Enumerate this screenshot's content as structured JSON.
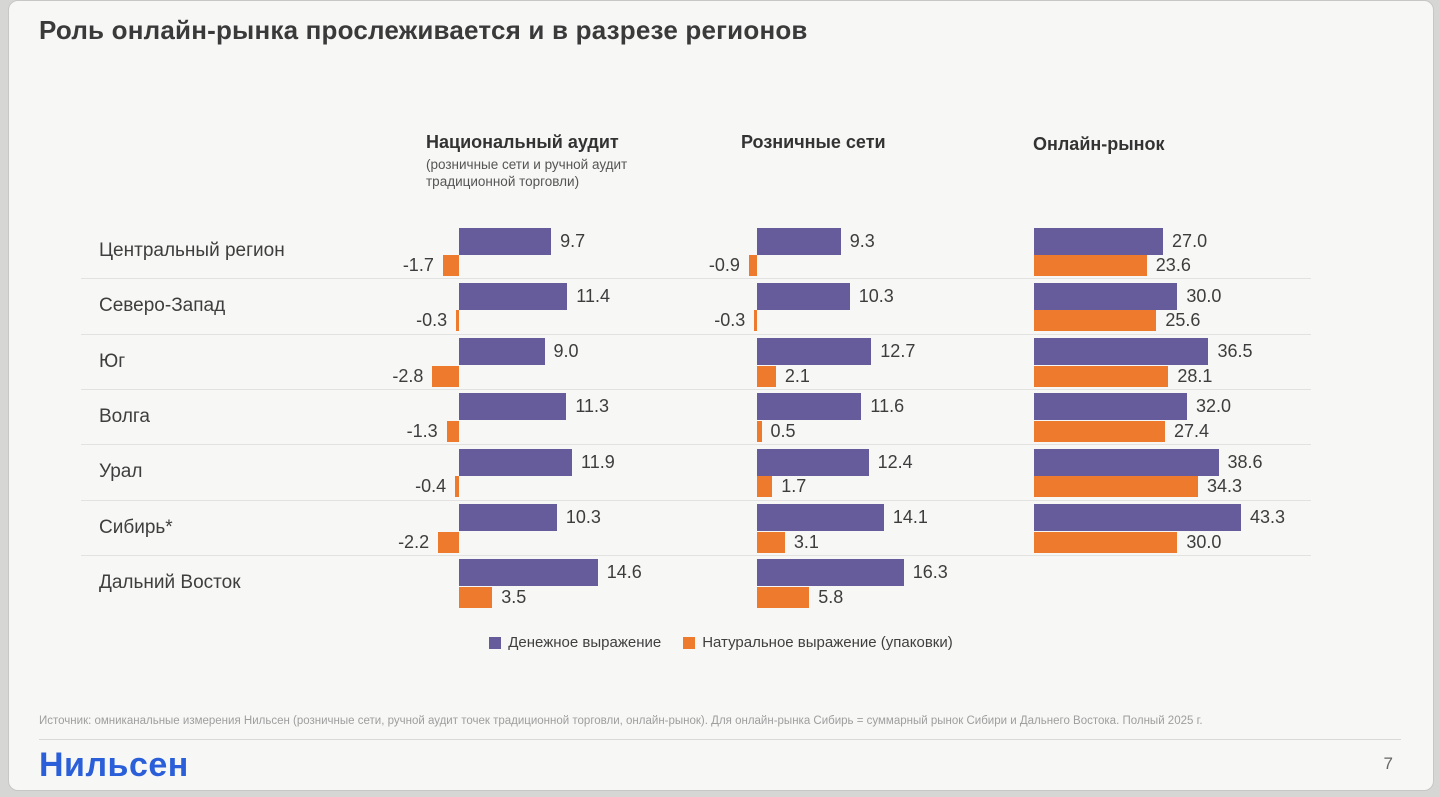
{
  "slide": {
    "title": "Роль онлайн-рынка прослеживается и в разрезе регионов",
    "source_note": "Источник: омниканальные измерения Нильсен (розничные сети, ручной аудит точек традиционной торговли, онлайн-рынок). Для онлайн-рынка Сибирь = суммарный рынок Сибири и Дальнего Востока. Полный 2025 г.",
    "logo_text": "Нильсен",
    "page_number": "7"
  },
  "colors": {
    "money_bar": "#665C9C",
    "units_bar": "#ED7A2D",
    "logo_blue": "#2B5FD9"
  },
  "chart_data": {
    "type": "bar",
    "orientation": "horizontal",
    "categories": [
      "Центральный регион",
      "Северо-Запад",
      "Юг",
      "Волга",
      "Урал",
      "Сибирь*",
      "Дальний Восток"
    ],
    "legend": [
      "Денежное выражение",
      "Натуральное выражение (упаковки)"
    ],
    "legend_position": "bottom-center",
    "value_format": "one-decimal",
    "panels": [
      {
        "title": "Национальный аудит",
        "subtitle": "(розничные сети и ручной аудит традиционной торговли)",
        "series": [
          {
            "name": "Денежное выражение",
            "values": [
              9.7,
              11.4,
              9.0,
              11.3,
              11.9,
              10.3,
              14.6
            ]
          },
          {
            "name": "Натуральное выражение (упаковки)",
            "values": [
              -1.7,
              -0.3,
              -2.8,
              -1.3,
              -0.4,
              -2.2,
              3.5
            ]
          }
        ]
      },
      {
        "title": "Розничные сети",
        "subtitle": "",
        "series": [
          {
            "name": "Денежное выражение",
            "values": [
              9.3,
              10.3,
              12.7,
              11.6,
              12.4,
              14.1,
              16.3
            ]
          },
          {
            "name": "Натуральное выражение (упаковки)",
            "values": [
              -0.9,
              -0.3,
              2.1,
              0.5,
              1.7,
              3.1,
              5.8
            ]
          }
        ]
      },
      {
        "title": "Онлайн-рынок",
        "subtitle": "",
        "series": [
          {
            "name": "Денежное выражение",
            "values": [
              27.0,
              30.0,
              36.5,
              32.0,
              38.6,
              43.3,
              null
            ]
          },
          {
            "name": "Натуральное выражение (упаковки)",
            "values": [
              23.6,
              25.6,
              28.1,
              27.4,
              34.3,
              30.0,
              null
            ]
          }
        ]
      }
    ]
  }
}
